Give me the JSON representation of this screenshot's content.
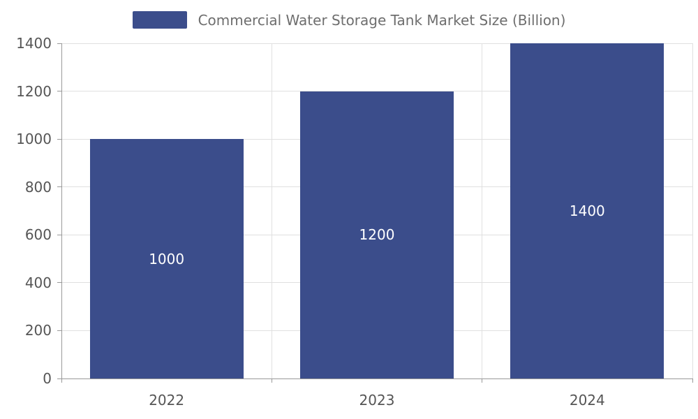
{
  "legend": {
    "label": "Commercial Water Storage Tank Market Size (Billion)"
  },
  "colors": {
    "bar": "#3B4D8B",
    "grid": "#e0e0e0",
    "axis": "#999999",
    "tick_text": "#555555",
    "category_text": "#555555",
    "value_label_text": "#ffffff",
    "legend_text": "#6e6e6e",
    "background": "#ffffff"
  },
  "chart_data": {
    "type": "bar",
    "title": "Commercial Water Storage Tank Market Size (Billion)",
    "categories": [
      "2022",
      "2023",
      "2024"
    ],
    "values": [
      1000,
      1200,
      1400
    ],
    "series": [
      {
        "name": "Commercial Water Storage Tank Market Size (Billion)",
        "values": [
          1000,
          1200,
          1400
        ]
      }
    ],
    "xlabel": "",
    "ylabel": "",
    "ylim": [
      0,
      1400
    ],
    "yticks": [
      0,
      200,
      400,
      600,
      800,
      1000,
      1200,
      1400
    ],
    "grid": true,
    "legend_position": "top-center",
    "data_labels": true,
    "data_label_position": "inside-center"
  }
}
